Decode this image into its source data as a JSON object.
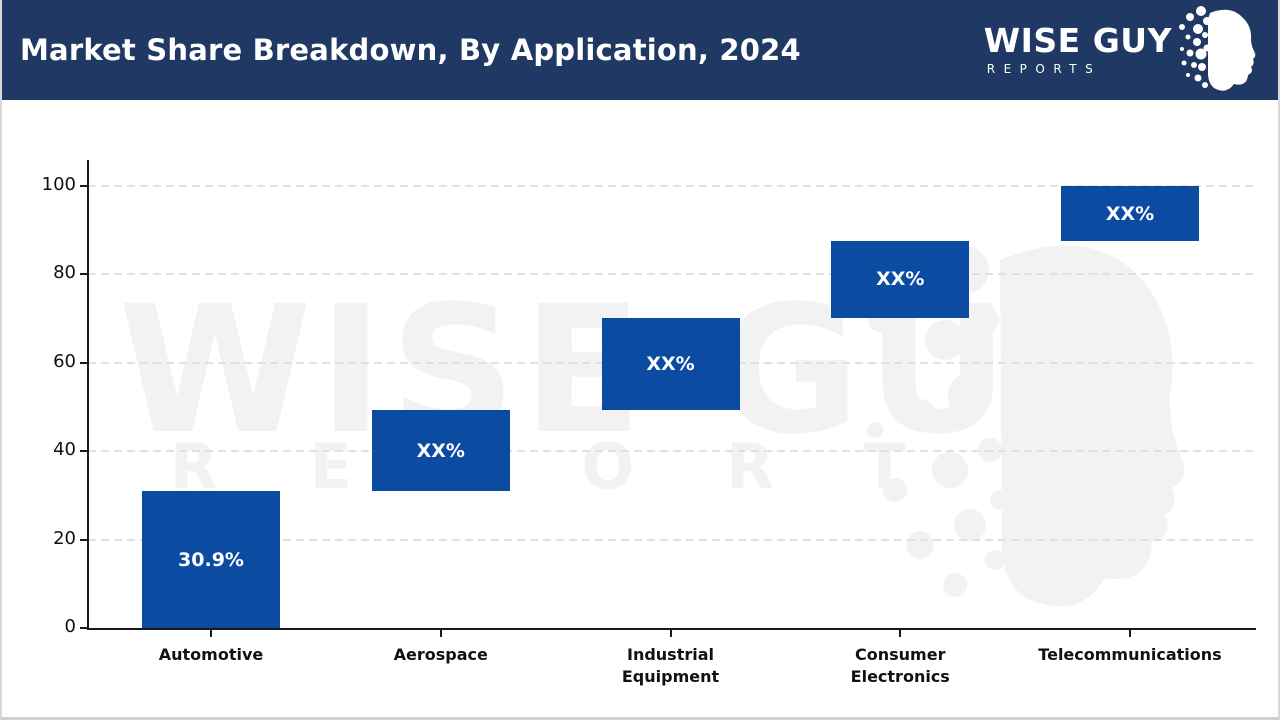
{
  "header": {
    "title": "Market Share Breakdown, By Application, 2024",
    "bg_color": "#1f3864",
    "logo": {
      "line1": "WISE GUY",
      "line2": "REPORTS"
    }
  },
  "watermark": {
    "line1": "WISE GUY",
    "line2": "REPORTS"
  },
  "chart_data": {
    "type": "bar",
    "subtype": "waterfall",
    "title": "Market Share Breakdown, By Application, 2024",
    "categories": [
      "Automotive",
      "Aerospace",
      "Industrial Equipment",
      "Consumer Electronics",
      "Telecommunications"
    ],
    "series": [
      {
        "name": "Market share (%)",
        "bar_start": [
          0,
          30.9,
          49.3,
          70.2,
          87.5
        ],
        "bar_end": [
          30.9,
          49.3,
          70.2,
          87.5,
          100
        ]
      }
    ],
    "bar_labels": [
      "30.9%",
      "XX%",
      "XX%",
      "XX%",
      "XX%"
    ],
    "xlabel": "",
    "ylabel": "",
    "ylim": [
      0,
      100
    ],
    "yticks": [
      0,
      20,
      40,
      60,
      80,
      100
    ],
    "grid": "horizontal-dashed",
    "legend": "none",
    "bar_color": "#0b4ba1",
    "bar_label_color": "#ffffff",
    "axis_color": "#1a1a1a",
    "gridline_color": "#e1e1e1"
  }
}
